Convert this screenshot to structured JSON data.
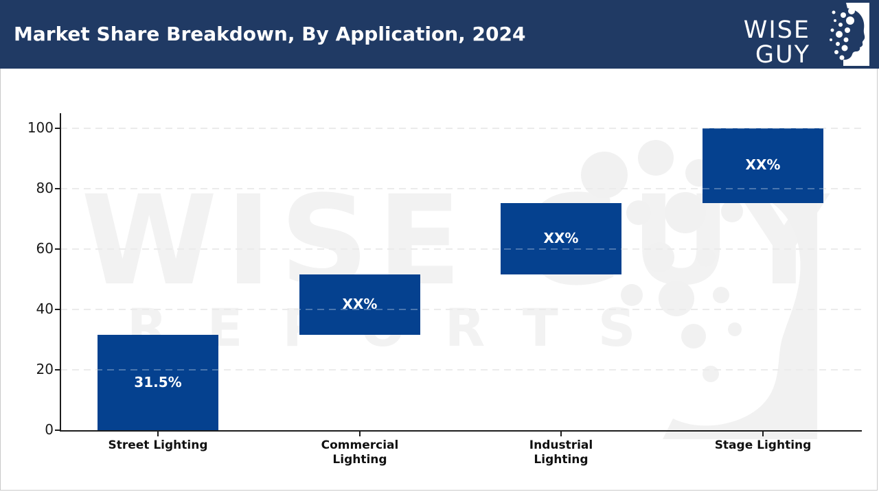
{
  "header": {
    "title": "Market Share Breakdown, By Application, 2024",
    "bg_color": "#203a64",
    "logo": {
      "line1": "WISE GUY",
      "line2": "REPORTS"
    }
  },
  "watermark": {
    "line1": "WISE GUY",
    "line2": "REPORTS"
  },
  "chart_data": {
    "type": "bar",
    "subtype": "waterfall",
    "title": "Market Share Breakdown, By Application, 2024",
    "xlabel": "",
    "ylabel": "",
    "categories": [
      "Street Lighting",
      "Commercial Lighting",
      "Industrial Lighting",
      "Stage Lighting"
    ],
    "category_tick_lines": [
      [
        "Street Lighting"
      ],
      [
        "Commercial",
        "Lighting"
      ],
      [
        "Industrial",
        "Lighting"
      ],
      [
        "Stage Lighting"
      ]
    ],
    "segments": [
      {
        "category": "Street Lighting",
        "start": 0,
        "end": 31.5,
        "label": "31.5%"
      },
      {
        "category": "Commercial Lighting",
        "start": 31.5,
        "end": 51.5,
        "label": "XX%"
      },
      {
        "category": "Industrial Lighting",
        "start": 51.5,
        "end": 75.3,
        "label": "XX%"
      },
      {
        "category": "Stage Lighting",
        "start": 75.3,
        "end": 100,
        "label": "XX%"
      }
    ],
    "yticks": [
      0,
      20,
      40,
      60,
      80,
      100
    ],
    "ylim": [
      0,
      105
    ],
    "bar_color": "#05418f",
    "grid": "horizontal-dashed",
    "grid_color": "#e3e3e3",
    "legend": null
  }
}
